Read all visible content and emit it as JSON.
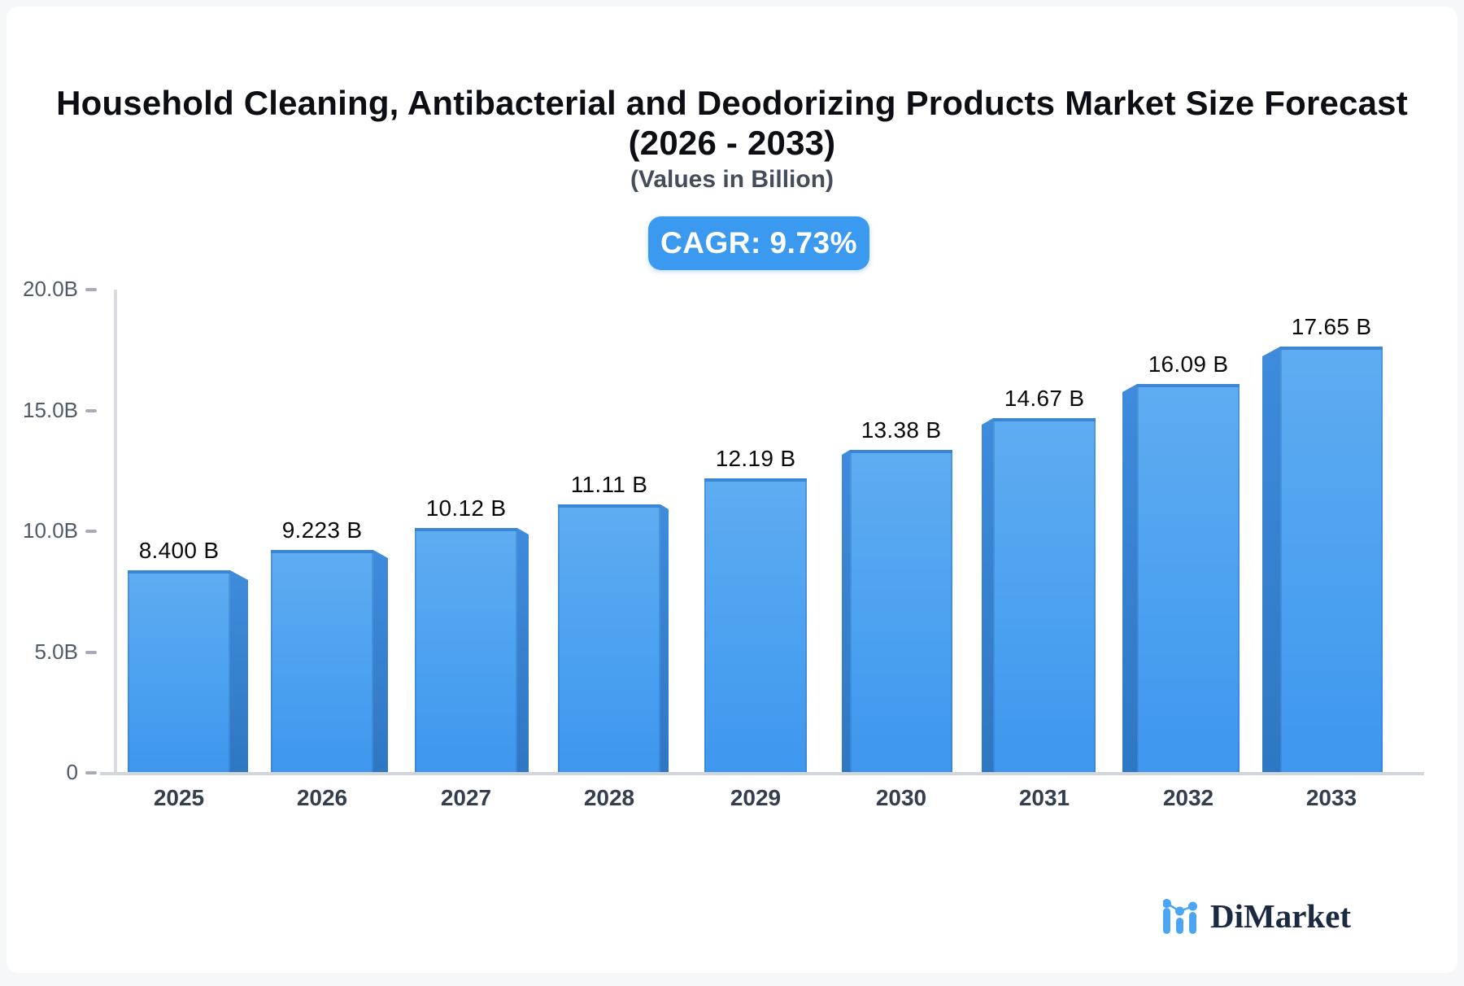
{
  "page": {
    "background": "#f6f7f8",
    "card_background": "#ffffff"
  },
  "header": {
    "title_line1": "Household Cleaning, Antibacterial and Deodorizing Products Market Size Forecast",
    "title_line2": "(2026 - 2033)",
    "subtitle": "(Values in Billion)",
    "cagr_badge": "CAGR: 9.73%",
    "badge_color": "#3b9af0"
  },
  "chart_data": {
    "type": "bar",
    "title": "Household Cleaning, Antibacterial and Deodorizing Products Market Size Forecast (2026 - 2033)",
    "subtitle": "(Values in Billion)",
    "categories": [
      "2025",
      "2026",
      "2027",
      "2028",
      "2029",
      "2030",
      "2031",
      "2032",
      "2033"
    ],
    "values": [
      8.4,
      9.223,
      10.12,
      11.11,
      12.19,
      13.38,
      14.67,
      16.09,
      17.65
    ],
    "value_labels": [
      "8.400 B",
      "9.223 B",
      "10.12 B",
      "11.11 B",
      "12.19 B",
      "13.38 B",
      "14.67 B",
      "16.09 B",
      "17.65 B"
    ],
    "xlabel": "",
    "ylabel": "",
    "ylim": [
      0,
      20
    ],
    "ytick_labels": [
      "0",
      "5.0B",
      "10.0B",
      "15.0B",
      "20.0B"
    ],
    "grid": false,
    "legend": "none",
    "bar_face_top_color": "#5facf1",
    "bar_face_bottom_color": "#3e97ee",
    "bar_side_color": "#2f7cc7",
    "bar_edge_color": "#3b86d3",
    "effect": "3d-perspective-toward-center"
  },
  "footer": {
    "brand": "DiMarket",
    "brand_color": "#1b2942",
    "icon_color": "#4ba4f4"
  }
}
